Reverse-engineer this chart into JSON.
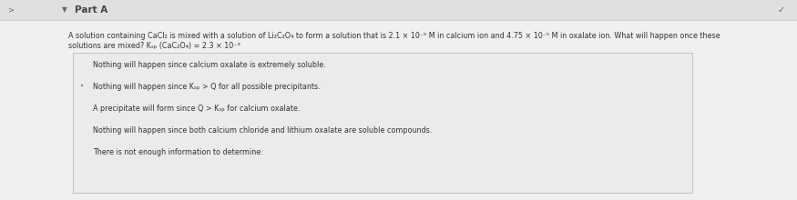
{
  "title": "Part A",
  "line1": "A solution containing CaCl₂ is mixed with a solution of Li₂C₂O₄ to form a solution that is 2.1 × 10⁻⁵ M in calcium ion and 4.75 × 10⁻⁵ M in oxalate ion. What will happen once these",
  "line2": "solutions are mixed? Kₛₚ (CaC₂O₄) = 2.3 × 10⁻⁹",
  "options": [
    "Nothing will happen since calcium oxalate is extremely soluble.",
    "Nothing will happen since Kₛₚ > Q for all possible precipitants.",
    "A precipitate will form since Q > Kₛₚ for calcium oxalate.",
    "Nothing will happen since both calcium chloride and lithium oxalate are soluble compounds.",
    "There is not enough information to determine."
  ],
  "selected_option": 1,
  "page_bg": "#e8e8e8",
  "header_bg": "#e0e0e0",
  "content_bg": "#f0f0f0",
  "box_bg": "#ebebeb",
  "box_border": "#bbbbbb",
  "text_color": "#333333",
  "title_color": "#444444",
  "muted_color": "#666666",
  "font_size_title": 7.5,
  "font_size_para": 5.8,
  "font_size_option": 5.8
}
